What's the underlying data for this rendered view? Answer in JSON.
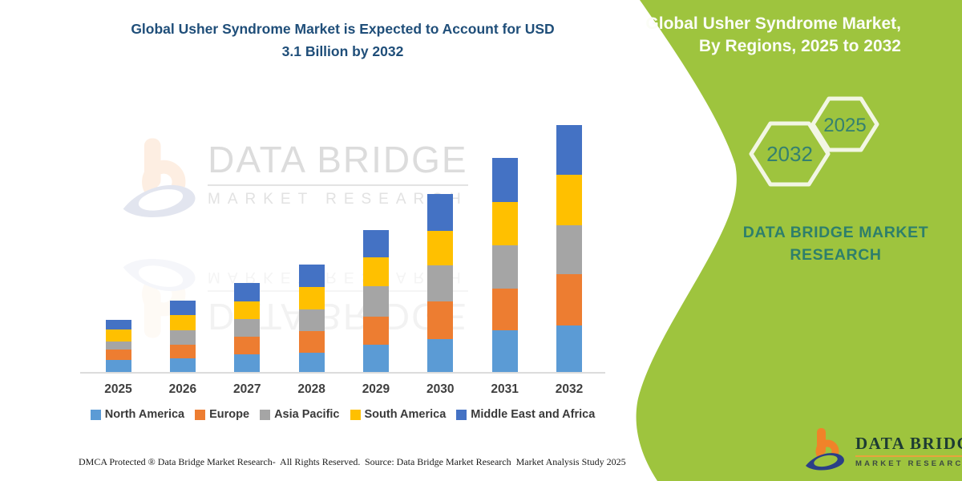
{
  "title": {
    "line1": "Global Usher Syndrome Market is Expected to Account for USD",
    "line2": "3.1 Billion by 2032"
  },
  "watermark": {
    "line1": "DATA BRIDGE",
    "line2": "MARKET RESEARCH"
  },
  "footer": {
    "left": "DMCA Protected ® Data Bridge Market Research-  All Rights Reserved.",
    "right": "Source: Data Bridge Market Research  Market Analysis Study 2025"
  },
  "side_panel": {
    "title_line1": "Global Usher Syndrome Market,",
    "title_line2": "By Regions, 2025 to 2032",
    "hexagon_large_label": "2032",
    "hexagon_small_label": "2025",
    "brand_line1": "DATA BRIDGE MARKET",
    "brand_line2": "RESEARCH",
    "logo_name": "DATA BRIDGE",
    "logo_subtitle": "MARKET RESEARCH",
    "colors": {
      "panel_green": "#9EC43E",
      "teal_text": "#2E7F6B",
      "white_outline": "#F2F6E4"
    }
  },
  "chart_data": {
    "type": "bar",
    "stacked": true,
    "title": "Global Usher Syndrome Market is Expected to Account for USD 3.1 Billion by 2032",
    "xlabel": "",
    "ylabel": "",
    "unit": "USD billion (estimated from bar heights; total 2032 = 3.1)",
    "y_axis_visible": false,
    "gridlines": false,
    "legend_position": "bottom",
    "categories": [
      "2025",
      "2026",
      "2027",
      "2028",
      "2029",
      "2030",
      "2031",
      "2032"
    ],
    "series": [
      {
        "name": "North America",
        "color": "#5B9BD5",
        "values": [
          0.16,
          0.18,
          0.23,
          0.25,
          0.35,
          0.42,
          0.53,
          0.59
        ]
      },
      {
        "name": "Europe",
        "color": "#ED7D31",
        "values": [
          0.13,
          0.17,
          0.22,
          0.27,
          0.35,
          0.47,
          0.52,
          0.64
        ]
      },
      {
        "name": "Asia Pacific",
        "color": "#A5A5A5",
        "values": [
          0.1,
          0.18,
          0.22,
          0.27,
          0.38,
          0.45,
          0.54,
          0.61
        ]
      },
      {
        "name": "South America",
        "color": "#FFC000",
        "values": [
          0.15,
          0.19,
          0.22,
          0.28,
          0.36,
          0.43,
          0.54,
          0.63
        ]
      },
      {
        "name": "Middle East and Africa",
        "color": "#4472C4",
        "values": [
          0.12,
          0.18,
          0.23,
          0.28,
          0.34,
          0.46,
          0.55,
          0.62
        ]
      }
    ],
    "totals": [
      0.66,
      0.9,
      1.12,
      1.35,
      1.78,
      2.23,
      2.68,
      3.1
    ]
  }
}
